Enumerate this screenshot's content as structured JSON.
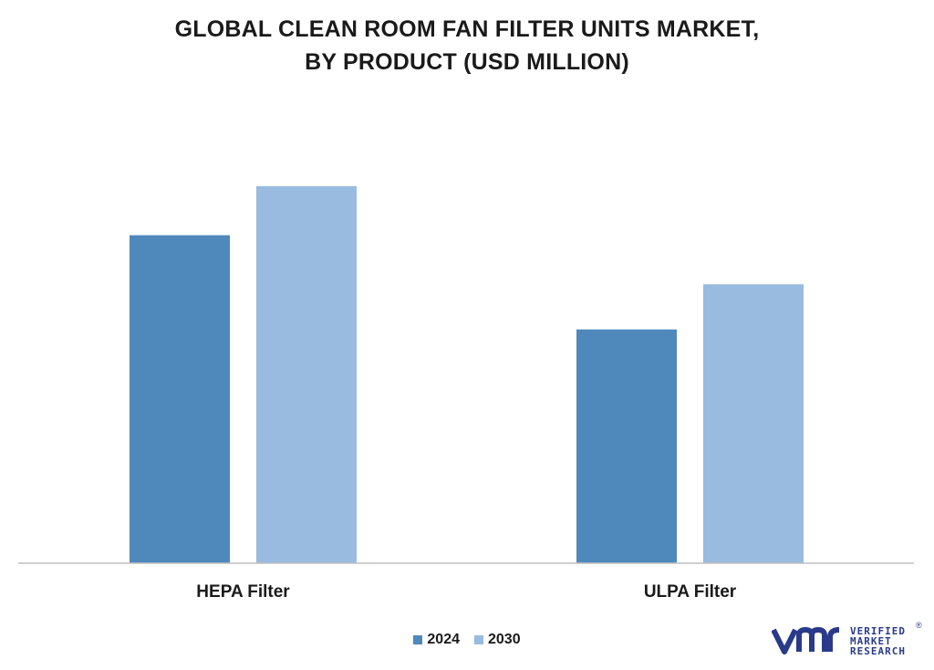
{
  "chart_data": {
    "type": "bar",
    "title_lines": [
      "GLOBAL CLEAN ROOM FAN FILTER UNITS MARKET,",
      "BY PRODUCT (USD MILLION)"
    ],
    "categories": [
      "HEPA Filter",
      "ULPA Filter"
    ],
    "series": [
      {
        "name": "2024",
        "values": [
          87,
          62
        ]
      },
      {
        "name": "2030",
        "values": [
          100,
          74
        ]
      }
    ],
    "colors": [
      "#4f89bc",
      "#9abbe0"
    ],
    "ylim": [
      0,
      100
    ],
    "grid": false,
    "legend_position": "bottom"
  },
  "brand": {
    "line1": "VERIFIED",
    "line2": "MARKET",
    "line3": "RESEARCH",
    "reg": "®",
    "color": "#2a3a8a"
  }
}
